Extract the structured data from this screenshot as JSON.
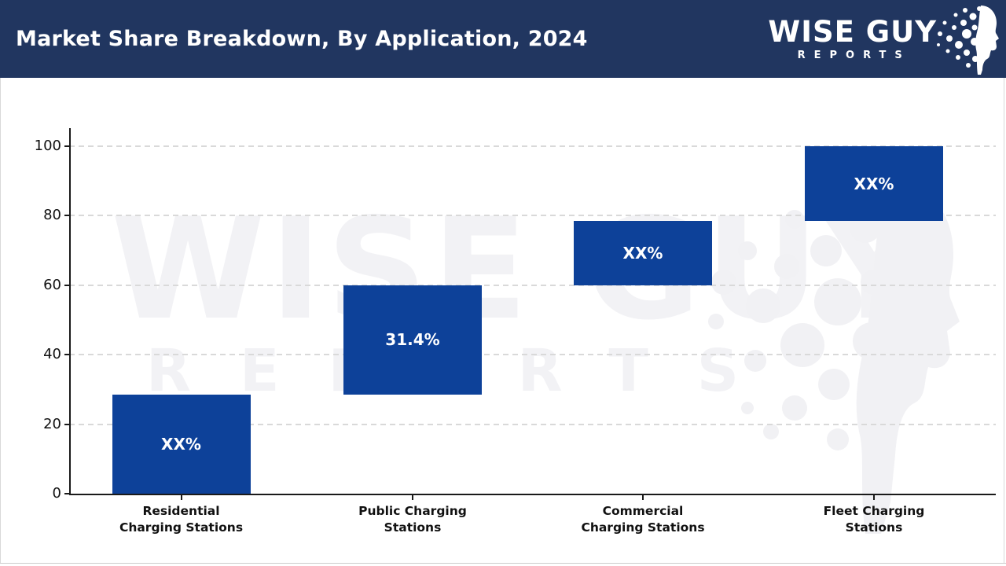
{
  "header": {
    "title": "Market Share Breakdown, By Application, 2024",
    "bg_color": "#213660",
    "logo": {
      "line1": "WISE GUY",
      "line2": "REPORTS"
    }
  },
  "watermark": {
    "line1": "WISE GUY",
    "line2": "REPORTS"
  },
  "chart_data": {
    "type": "bar",
    "subtype": "waterfall",
    "title": "Market Share Breakdown, By Application, 2024",
    "categories": [
      [
        "Residential",
        "Charging Stations"
      ],
      [
        "Public Charging",
        "Stations"
      ],
      [
        "Commercial",
        "Charging Stations"
      ],
      [
        "Fleet Charging",
        "Stations"
      ]
    ],
    "segments": [
      {
        "category": "Residential Charging Stations",
        "start": 0,
        "end": 28.6,
        "label": "XX%"
      },
      {
        "category": "Public Charging Stations",
        "start": 28.6,
        "end": 60,
        "label": "31.4%"
      },
      {
        "category": "Commercial Charging Stations",
        "start": 60,
        "end": 78.5,
        "label": "XX%"
      },
      {
        "category": "Fleet Charging Stations",
        "start": 78.5,
        "end": 100,
        "label": "XX%"
      }
    ],
    "yticks": [
      0,
      20,
      40,
      60,
      80,
      100
    ],
    "ylim": [
      0,
      105
    ],
    "xlabel": "",
    "ylabel": "",
    "grid": "horizontal-dashed",
    "legend": "none",
    "bar_color": "#0d4199",
    "bar_label_color": "#ffffff",
    "axis_color": "#1a1a1a",
    "gridline_color": "#d9d9d9"
  }
}
